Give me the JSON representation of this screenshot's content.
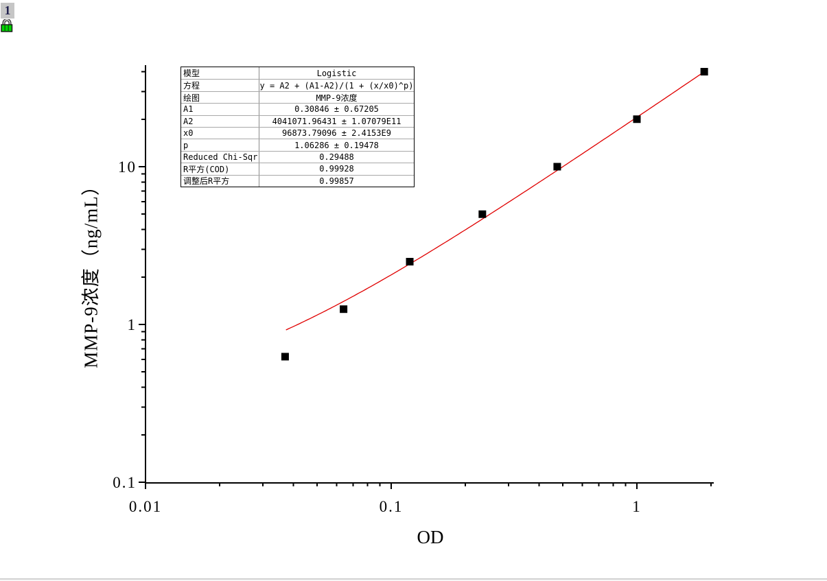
{
  "window": {
    "layer_badge": "1",
    "lock_icon": "green-recalculate-lock"
  },
  "chart_data": {
    "type": "scatter",
    "title": "",
    "xlabel": "OD",
    "ylabel": "MMP-9浓度（ng/mL）",
    "x_scale": "log",
    "y_scale": "log",
    "xlim": [
      0.01,
      2.1
    ],
    "ylim": [
      0.1,
      45
    ],
    "grid": false,
    "x_major_ticks": [
      0.01,
      0.1,
      1
    ],
    "x_tick_labels": [
      "0.01",
      "0.1",
      "1"
    ],
    "x_minor_ticks": [
      0.02,
      0.03,
      0.04,
      0.05,
      0.06,
      0.07,
      0.08,
      0.09,
      0.2,
      0.3,
      0.4,
      0.5,
      0.6,
      0.7,
      0.8,
      0.9,
      2
    ],
    "y_major_ticks": [
      0.1,
      1,
      10
    ],
    "y_tick_labels": [
      "0.1",
      "1",
      "10"
    ],
    "y_minor_ticks": [
      0.2,
      0.3,
      0.4,
      0.5,
      0.6,
      0.7,
      0.8,
      0.9,
      2,
      3,
      4,
      5,
      6,
      7,
      8,
      9,
      20,
      30,
      40
    ],
    "marker_color": "#000000",
    "curve_color": "#e00000",
    "series": [
      {
        "name": "MMP-9浓度",
        "type": "scatter",
        "marker": "filled-square",
        "points_od": [
          0.037,
          0.064,
          0.119,
          0.235,
          0.474,
          1.0,
          1.88
        ],
        "points_conc": [
          0.625,
          1.25,
          2.5,
          5,
          10,
          20,
          40
        ]
      },
      {
        "name": "Logistic fit",
        "type": "curve",
        "equation": "y = A2 + (A1-A2)/(1 + (x/x0)^p)",
        "params": {
          "A1": 0.30846,
          "A2": 4041071.96431,
          "x0": 96873.79096,
          "p": 1.06286
        },
        "x_range": [
          0.0373,
          1.93
        ]
      }
    ]
  },
  "fit_table": {
    "rows": [
      {
        "label": "模型",
        "value": "Logistic"
      },
      {
        "label": "方程",
        "value": "y = A2 + (A1-A2)/(1 + (x/x0)^p)"
      },
      {
        "label": "绘图",
        "value": "MMP-9浓度"
      },
      {
        "label": "A1",
        "value": "0.30846 ± 0.67205"
      },
      {
        "label": "A2",
        "value": "4041071.96431 ± 1.07079E11"
      },
      {
        "label": "x0",
        "value": "96873.79096 ± 2.4153E9"
      },
      {
        "label": "p",
        "value": "1.06286 ± 0.19478"
      },
      {
        "label": "Reduced Chi-Sqr",
        "value": "0.29488"
      },
      {
        "label": "R平方(COD)",
        "value": "0.99928"
      },
      {
        "label": "调整后R平方",
        "value": "0.99857"
      }
    ]
  }
}
